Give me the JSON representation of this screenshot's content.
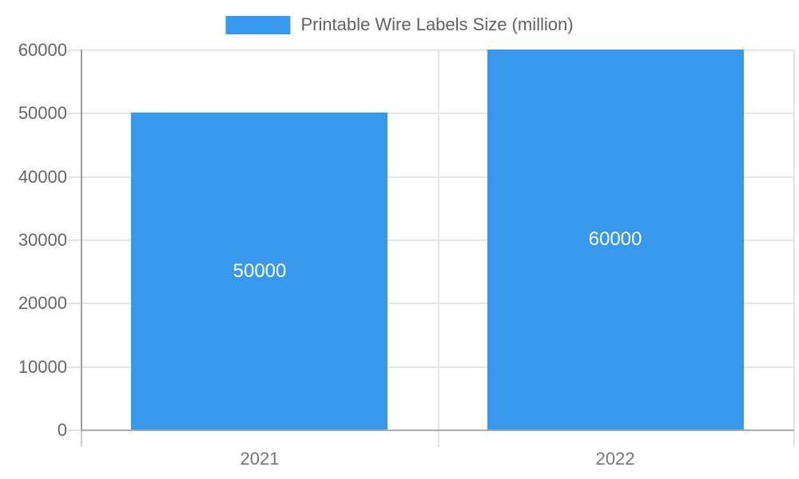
{
  "legend": {
    "label": "Printable Wire Labels Size (million)"
  },
  "chart_data": {
    "type": "bar",
    "title": "Printable Wire Labels Size (million)",
    "categories": [
      "2021",
      "2022"
    ],
    "series": [
      {
        "name": "Printable Wire Labels Size (million)",
        "values": [
          50000,
          60000
        ],
        "data_labels": [
          "50000",
          "60000"
        ]
      }
    ],
    "xlabel": "",
    "ylabel": "",
    "ylim": [
      0,
      60000
    ],
    "yticks": [
      0,
      10000,
      20000,
      30000,
      40000,
      50000,
      60000
    ],
    "ytick_labels": [
      "0",
      "10000",
      "20000",
      "30000",
      "40000",
      "50000",
      "60000"
    ],
    "grid": true,
    "legend_position": "top-center",
    "colors": {
      "bar": "#3899EC",
      "gridline": "#e6e6e6",
      "axis_line": "#9e9e9e",
      "baseline": "#ababab",
      "y_label_text": "#666666",
      "x_label_text": "#757575",
      "legend_text": "#616161",
      "bar_label_text": "#ffffff",
      "background": "#ffffff"
    }
  }
}
